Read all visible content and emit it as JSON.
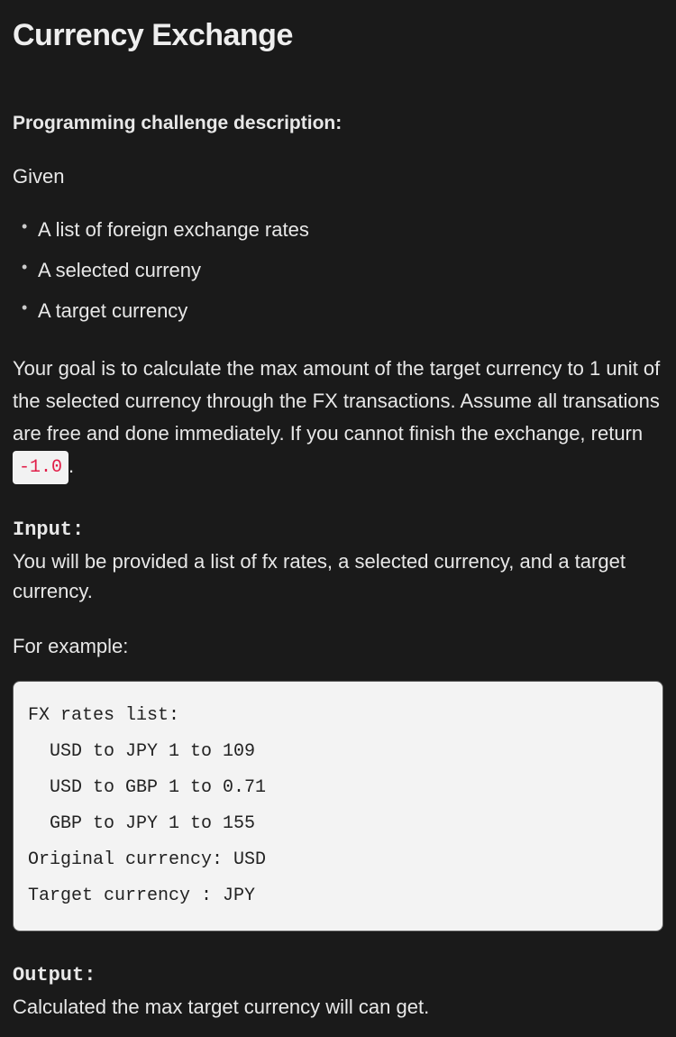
{
  "title": "Currency Exchange",
  "description_label": "Programming challenge description:",
  "given_label": "Given",
  "given_items": [
    "A list of foreign exchange rates",
    "A selected curreny",
    "A target currency"
  ],
  "goal_text_1": "Your goal is to calculate the max amount of the target currency to 1 unit of the selected currency through the FX transactions. Assume all transations are free and done immediately. If you cannot finish the exchange, return ",
  "goal_code": "-1.0",
  "goal_text_2": ".",
  "input_label": "Input:",
  "input_text": "You will be provided a list of fx rates, a selected currency, and a target currency.",
  "for_example": "For example:",
  "example_code": "FX rates list:\n  USD to JPY 1 to 109\n  USD to GBP 1 to 0.71\n  GBP to JPY 1 to 155\nOriginal currency: USD\nTarget currency : JPY",
  "output_label": "Output:",
  "output_text": "Calculated the max target currency will can get.",
  "colors": {
    "background": "#1a1a1a",
    "text": "#e8e8e8",
    "code_bg": "#f3f3f3",
    "inline_code_bg": "#f2f2f2",
    "inline_code_text": "#e11d48",
    "code_block_text": "#222222",
    "code_block_border": "#5a5a5a"
  },
  "typography": {
    "title_fontsize": 34,
    "body_fontsize": 22,
    "code_fontsize": 20,
    "title_weight": 700,
    "label_weight": 700
  }
}
